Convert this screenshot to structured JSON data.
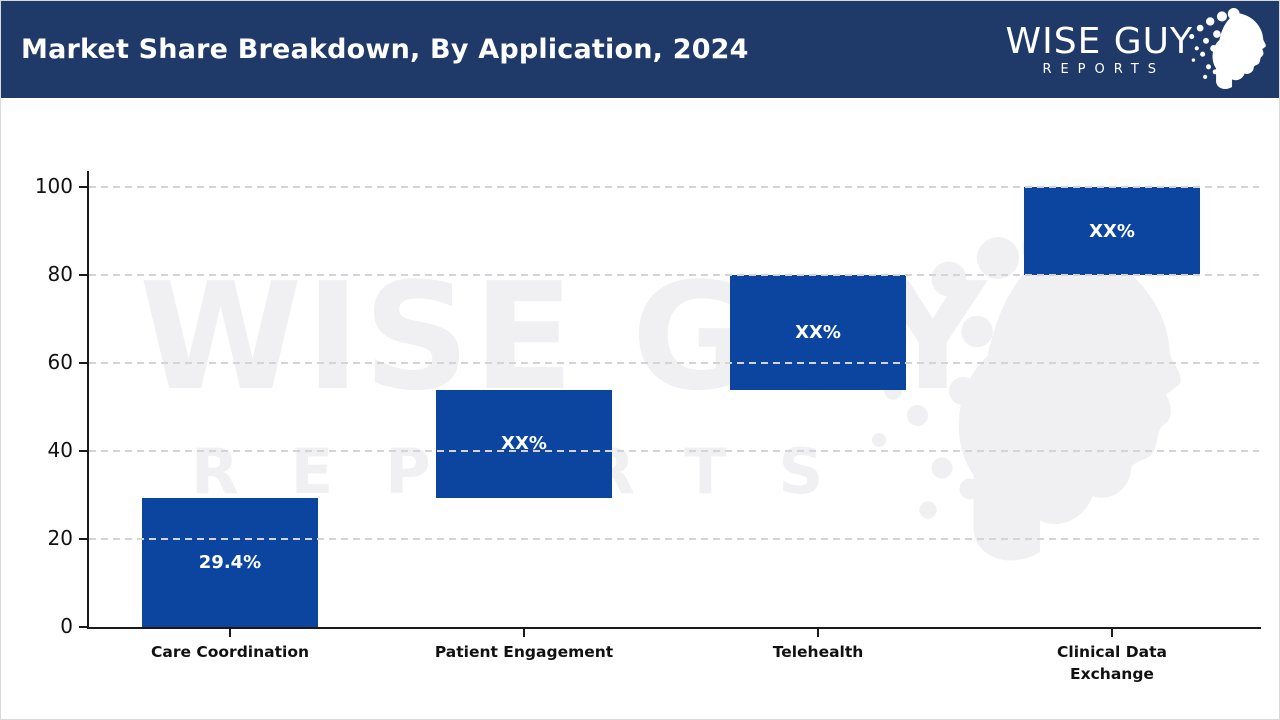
{
  "header": {
    "title": "Market Share Breakdown, By Application, 2024",
    "logo": {
      "line1": "WISE GUY",
      "line2": "REPORTS"
    }
  },
  "watermark": {
    "line1": "WISE GUY",
    "line2": "REPORTS"
  },
  "chart_data": {
    "type": "bar",
    "subtype": "waterfall-floating-bars",
    "title": "Market Share Breakdown, By Application, 2024",
    "categories": [
      "Care Coordination",
      "Patient Engagement",
      "Telehealth",
      "Clinical Data Exchange"
    ],
    "segments": [
      {
        "category": "Care Coordination",
        "start": 0,
        "end": 29.4,
        "label": "29.4%"
      },
      {
        "category": "Patient Engagement",
        "start": 29.4,
        "end": 53.8,
        "label": "XX%"
      },
      {
        "category": "Telehealth",
        "start": 53.8,
        "end": 80,
        "label": "XX%"
      },
      {
        "category": "Clinical Data Exchange",
        "start": 80,
        "end": 100,
        "label": "XX%"
      }
    ],
    "xlabel": "",
    "ylabel": "",
    "ylim": [
      0,
      100
    ],
    "yticks": [
      0,
      20,
      40,
      60,
      80,
      100
    ],
    "grid": "horizontal dashed, drawn above bars",
    "legend": "none",
    "bar_color": "#0c45a0",
    "bar_label_color": "#ffffff",
    "axis_color": "#1a1a1a",
    "header_color": "#1f3a68",
    "watermark_color": "#f0f0f2"
  }
}
